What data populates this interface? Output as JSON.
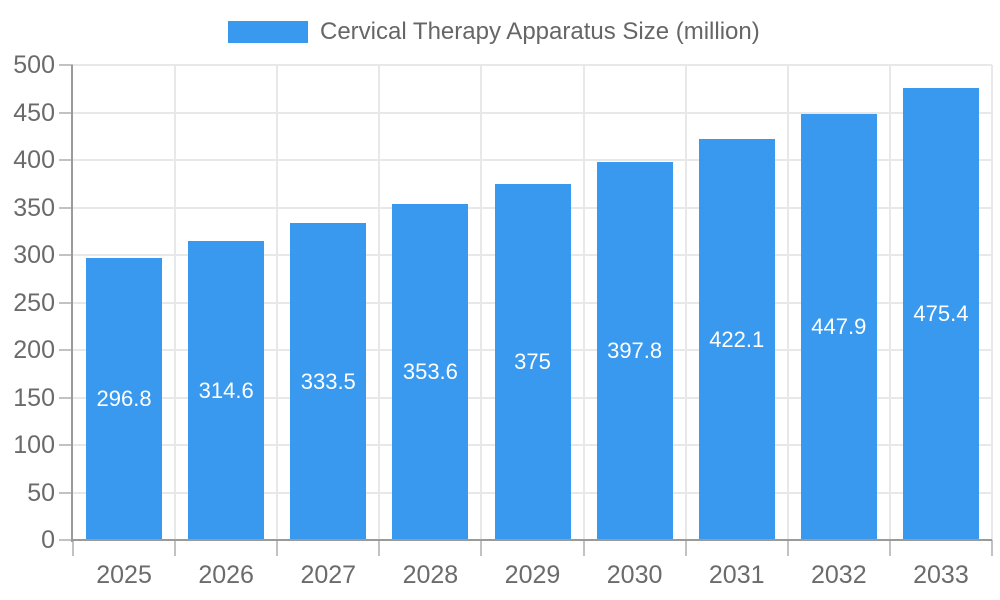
{
  "chart_data": {
    "type": "bar",
    "title": "",
    "legend": "Cervical Therapy Apparatus Size (million)",
    "legend_position": "top",
    "categories": [
      "2025",
      "2026",
      "2027",
      "2028",
      "2029",
      "2030",
      "2031",
      "2032",
      "2033"
    ],
    "values": [
      296.8,
      314.6,
      333.5,
      353.6,
      375,
      397.8,
      422.1,
      447.9,
      475.4
    ],
    "xlabel": "",
    "ylabel": "",
    "ylim": [
      0,
      500
    ],
    "ytick_step": 50,
    "grid": true,
    "value_labels_inside_bars": true,
    "colors": {
      "bar": "#3899EE",
      "value_label_text": "#FFFFFF",
      "axis_text": "#6B6B6B",
      "legend_text": "#666666",
      "gridline": "#E8E8E8",
      "tick": "#C2C2C2",
      "axis_line": "#9A9A9A",
      "background": "#FFFFFF"
    }
  }
}
